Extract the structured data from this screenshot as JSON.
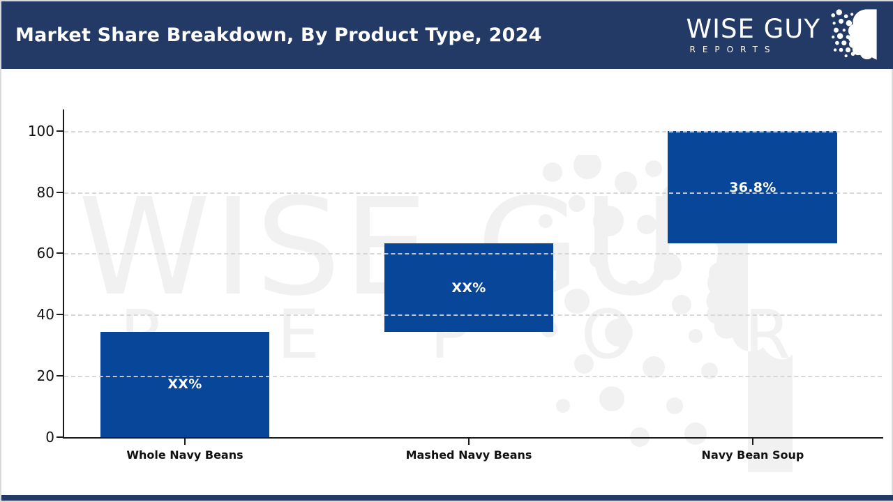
{
  "header": {
    "title": "Market Share Breakdown, By Product Type, 2024",
    "logo": {
      "line1": "WISE GUY",
      "line2": "REPORTS"
    }
  },
  "watermark": {
    "line1": "WISE GUY",
    "line2": "R E P O R T S"
  },
  "colors": {
    "header_bg": "#233a66",
    "footer_bg": "#233a66",
    "bar": "#074699",
    "bar_label": "#ffffff",
    "watermark": "#f1f1f1",
    "grid": "#d4d4d4",
    "axis": "#1a1a1a"
  },
  "chart_data": {
    "type": "bar",
    "variant": "floating-segment-waterfall",
    "title": "Market Share Breakdown, By Product Type, 2024",
    "categories": [
      "Whole Navy Beans",
      "Mashed Navy Beans",
      "Navy Bean Soup"
    ],
    "series": [
      {
        "name": "Whole Navy Beans",
        "start": 0,
        "end": 34.4,
        "value": 34.4,
        "label": "XX%"
      },
      {
        "name": "Mashed Navy Beans",
        "start": 34.4,
        "end": 63.2,
        "value": 28.8,
        "label": "XX%"
      },
      {
        "name": "Navy Bean Soup",
        "start": 63.2,
        "end": 100,
        "value": 36.8,
        "label": "36.8%"
      }
    ],
    "xlabel": "",
    "ylabel": "",
    "yticks": [
      0,
      20,
      40,
      60,
      80,
      100
    ],
    "ylim": [
      0,
      107
    ],
    "grid": "horizontal-dashed",
    "legend": "none",
    "layout": {
      "bar_width_frac": 0.2073,
      "center_fracs": [
        0.1476,
        0.4949,
        0.8421
      ]
    }
  }
}
